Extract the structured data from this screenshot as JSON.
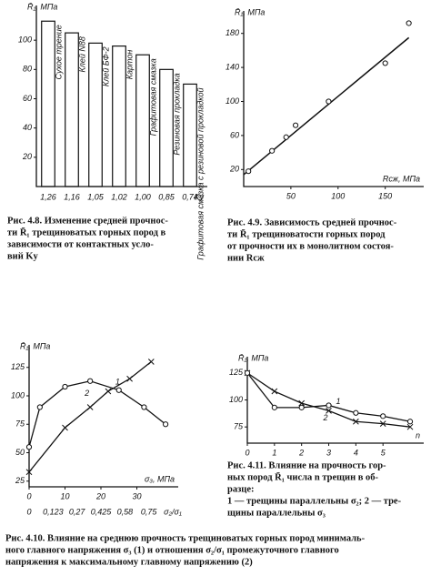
{
  "chart_data": [
    {
      "type": "bar",
      "ylabel": "R̄₁, МПа",
      "xlabel": "Kу",
      "categories": [
        "1,26",
        "1,16",
        "1,05",
        "1,02",
        "1,00",
        "0,85",
        "0,74"
      ],
      "bar_labels": [
        "Сухое трение",
        "Клей N88",
        "Клей БФ-2",
        "Картон",
        "Графитовая смазка",
        "Резиновая прокладка",
        "Графитовая смазка с резиновой прокладкой"
      ],
      "values": [
        113,
        105,
        98,
        96,
        90,
        80,
        70
      ],
      "color": "#111111",
      "ylim": [
        0,
        120
      ],
      "yticks": [
        20,
        40,
        60,
        80,
        100
      ],
      "caption": [
        "Рис. 4.8. Изменение средней прочнос-",
        "ти R̄₁ трещиноватых горных пород в",
        "зависимости от контактных усло-",
        "вий Kу"
      ]
    },
    {
      "type": "scatter",
      "ylabel": "R̄₁, МПа",
      "xlabel": "Rсж, МПа",
      "x": [
        5,
        30,
        45,
        55,
        90,
        150,
        175
      ],
      "values": [
        18,
        42,
        58,
        72,
        100,
        145,
        192
      ],
      "trend": {
        "x": [
          0,
          175
        ],
        "y": [
          14,
          175
        ]
      },
      "xlim": [
        0,
        185
      ],
      "ylim": [
        0,
        200
      ],
      "xticks": [
        50,
        100,
        150
      ],
      "yticks": [
        20,
        60,
        100,
        140,
        180
      ],
      "caption": [
        "Рис. 4.9. Зависимость средней прочнос-",
        "ти R̄₁ трещиноватости горных пород",
        "от прочности их в монолитном состоя-",
        "нии Rсж"
      ]
    },
    {
      "type": "line",
      "ylabel": "R̄₁, МПа",
      "xlabel": "σ₃, МПа",
      "series": [
        {
          "name": "1",
          "marker": "cross",
          "x": [
            0,
            10,
            17,
            22,
            28,
            34
          ],
          "values": [
            33,
            72,
            90,
            104,
            115,
            130
          ]
        },
        {
          "name": "2",
          "marker": "circle",
          "x": [
            0,
            3,
            10,
            17,
            25,
            32,
            38
          ],
          "values": [
            55,
            90,
            108,
            113,
            105,
            90,
            75
          ]
        }
      ],
      "xlim": [
        0,
        40
      ],
      "ylim": [
        20,
        140
      ],
      "xticks": [
        0,
        10,
        20,
        30
      ],
      "yticks": [
        25,
        50,
        75,
        100,
        125
      ],
      "x2_labels": [
        "0",
        "0,123",
        "0,27",
        "0,425",
        "0,58",
        "0,75",
        "σ₂/σ₁"
      ],
      "caption": [
        "Рис. 4.10. Влияние на среднюю прочность трещиноватых горных пород минималь-",
        "ного главного напряжения σ₃ (1) и отношения σ₂/σ₁ промежуточного главного",
        "напряжения к максимальному главному напряжению (2)"
      ]
    },
    {
      "type": "line",
      "ylabel": "R̄₁, МПа",
      "xlabel": "n",
      "series": [
        {
          "name": "1",
          "marker": "cross",
          "x": [
            0,
            1,
            2,
            3,
            4,
            5,
            6
          ],
          "values": [
            125,
            108,
            97,
            90,
            80,
            78,
            75
          ]
        },
        {
          "name": "2",
          "marker": "circle",
          "x": [
            0,
            1,
            2,
            3,
            4,
            5,
            6
          ],
          "values": [
            125,
            93,
            93,
            95,
            88,
            85,
            80
          ]
        }
      ],
      "xlim": [
        0,
        6.3
      ],
      "ylim": [
        60,
        135
      ],
      "xticks": [
        0,
        1,
        2,
        3,
        4,
        5
      ],
      "yticks": [
        75,
        100,
        125
      ],
      "caption": [
        "Рис. 4.11. Влияние на прочность гор-",
        "ных пород R̄₁ числа n трещин в об-",
        "разце:",
        "1 — трещины параллельны σ₂; 2 — тре-",
        "щины параллельны σ₃"
      ]
    }
  ]
}
